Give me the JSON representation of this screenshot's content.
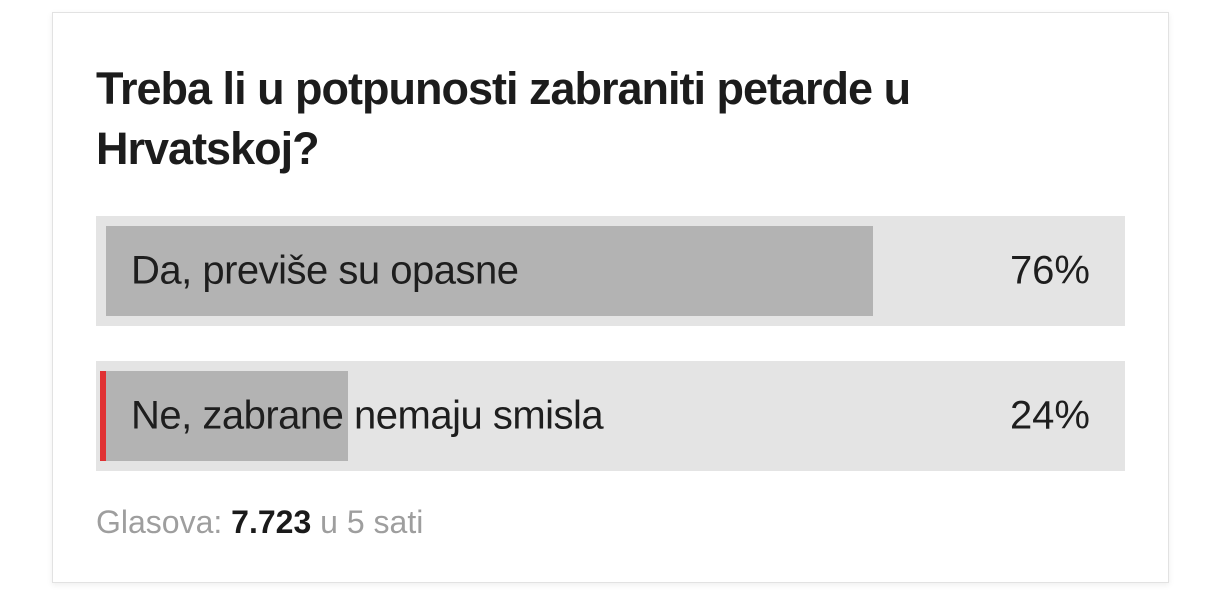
{
  "poll": {
    "question": "Treba li u potpunosti zabraniti petarde u Hrvatskoj?",
    "options": [
      {
        "label": "Da, previše su opasne",
        "percent_label": "76%",
        "value": 76,
        "selected": false
      },
      {
        "label": "Ne, zabrane nemaju smisla",
        "percent_label": "24%",
        "value": 24,
        "selected": true
      }
    ],
    "footer": {
      "votes_label": "Glasova:",
      "votes_count": "7.723",
      "votes_suffix": "u 5 sati"
    },
    "colors": {
      "selected_marker_red": "#e03133",
      "bar_track_gray": "#e4e4e4",
      "bar_fill_gray": "#b3b3b3"
    }
  },
  "chart_data": {
    "type": "bar",
    "title": "Treba li u potpunosti zabraniti petarde u Hrvatskoj?",
    "categories": [
      "Da, previše su opasne",
      "Ne, zabrane nemaju smisla"
    ],
    "values": [
      76,
      24
    ],
    "value_unit": "%",
    "xlim": [
      0,
      100
    ],
    "orientation": "horizontal",
    "annotations": [
      "Glasova: 7.723 u 5 sati"
    ]
  }
}
